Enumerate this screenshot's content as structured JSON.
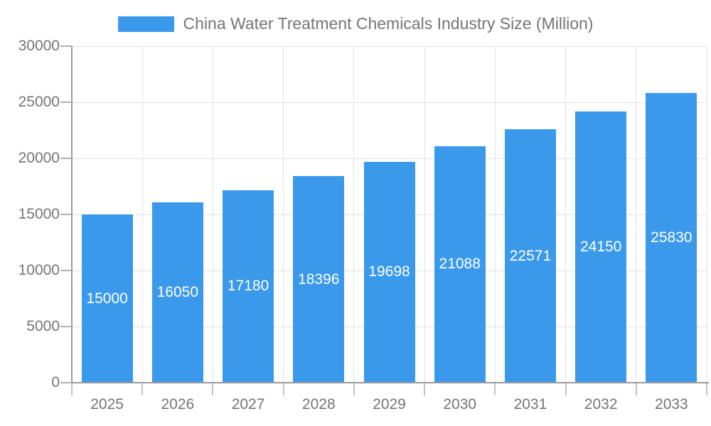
{
  "legend": {
    "label": "China Water Treatment Chemicals Industry Size (Million)"
  },
  "chart_data": {
    "type": "bar",
    "title": "China Water Treatment Chemicals Industry Size (Million)",
    "series_name": "China Water Treatment Chemicals Industry Size (Million)",
    "categories": [
      "2025",
      "2026",
      "2027",
      "2028",
      "2029",
      "2030",
      "2031",
      "2032",
      "2033"
    ],
    "values": [
      15000,
      16050,
      17180,
      18396,
      19698,
      21088,
      22571,
      24150,
      25830
    ],
    "value_labels_shown": [
      "15000",
      "16050",
      "17180",
      "18396",
      "19698",
      "21088",
      "22571",
      "24150",
      "25830"
    ],
    "xlabel": "",
    "ylabel": "",
    "ylim": [
      0,
      30000
    ],
    "yticks": [
      0,
      5000,
      10000,
      15000,
      20000,
      25000,
      30000
    ],
    "grid": true,
    "legend_position": "top-center",
    "value_label_position": "inside-middle"
  },
  "colors": {
    "bar": "#3B99EB",
    "value_label": "#ffffff",
    "axis_text": "#757575",
    "axis_line": "#9a9a9a",
    "gridline": "#e3e3e3"
  }
}
